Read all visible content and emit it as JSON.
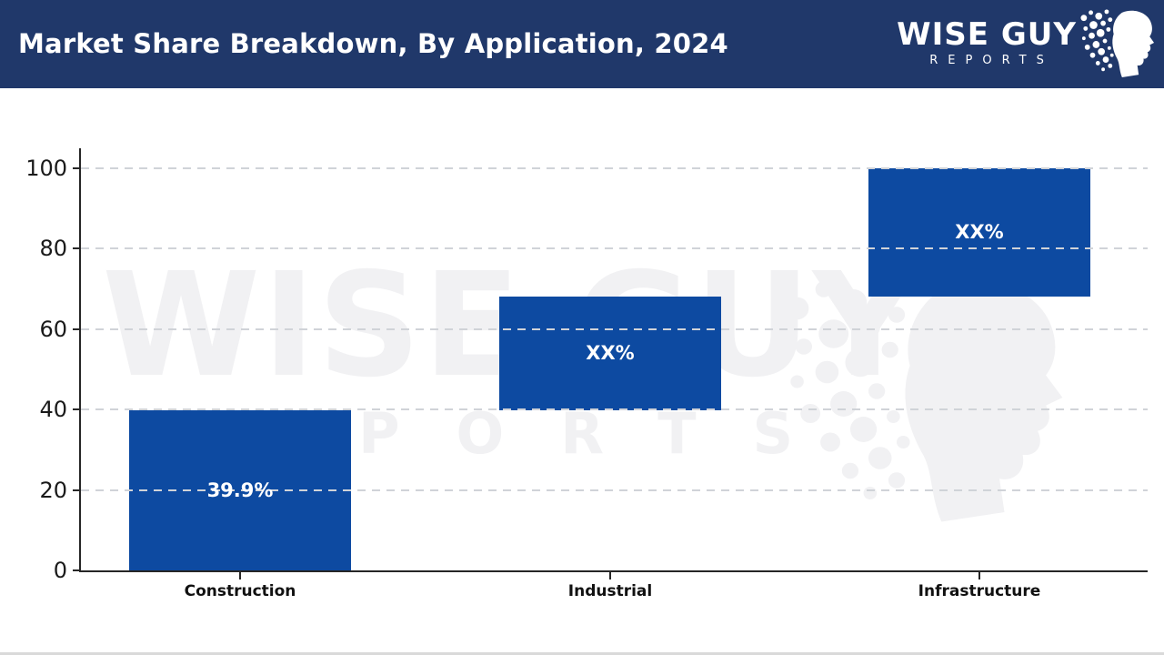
{
  "header": {
    "title": "Market Share Breakdown, By Application, 2024",
    "logo": {
      "line1": "WISE GUY",
      "line2": "REPORTS"
    }
  },
  "watermark": {
    "line1": "WISE GUY",
    "line2": "REPORTS"
  },
  "chart_data": {
    "type": "bar",
    "subtype": "floating-waterfall",
    "title": "Market Share Breakdown, By Application, 2024",
    "categories": [
      "Construction",
      "Industrial",
      "Infrastructure"
    ],
    "segments": [
      {
        "category": "Construction",
        "start": 0,
        "end": 39.9,
        "value_label": "39.9%"
      },
      {
        "category": "Industrial",
        "start": 39.9,
        "end": 68.1,
        "value_label": "XX%"
      },
      {
        "category": "Infrastructure",
        "start": 68.1,
        "end": 100,
        "value_label": "XX%"
      }
    ],
    "xlabel": "",
    "ylabel": "",
    "ylim": [
      0,
      100
    ],
    "yticks": [
      0,
      20,
      40,
      60,
      80,
      100
    ],
    "grid": "horizontal-dashed",
    "legend": "none",
    "bar_color": "#0d4aa1",
    "value_label_color": "#ffffff",
    "axis_color": "#262626",
    "gridline_color": "#d0d3d8"
  },
  "colors": {
    "header_background": "#20386a",
    "header_text": "#ffffff",
    "watermark": "#f1f1f3",
    "bottom_border": "#d9d9d9"
  }
}
